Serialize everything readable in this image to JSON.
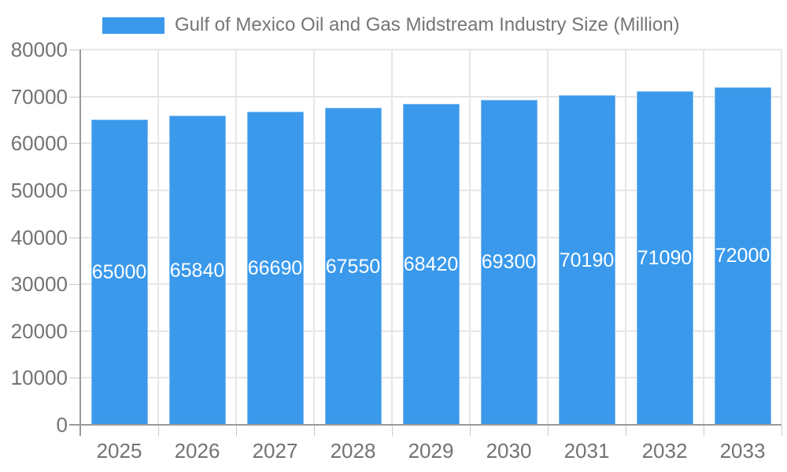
{
  "chart_data": {
    "type": "bar",
    "title": "Gulf of Mexico Oil and Gas Midstream Industry Size (Million)",
    "categories": [
      "2025",
      "2026",
      "2027",
      "2028",
      "2029",
      "2030",
      "2031",
      "2032",
      "2033"
    ],
    "values": [
      65000,
      65840,
      66690,
      67550,
      68420,
      69300,
      70190,
      71090,
      72000
    ],
    "xlabel": "",
    "ylabel": "",
    "ylim": [
      0,
      80000
    ],
    "ytick_interval": 10000,
    "yticks": [
      0,
      10000,
      20000,
      30000,
      40000,
      50000,
      60000,
      70000,
      80000
    ],
    "grid": "horizontal-and-vertical",
    "legend_position": "top",
    "bar_labels_inside": true,
    "colors": {
      "bar": "#3A99EB",
      "bar_edge": "#7FBCF2",
      "bar_label": "#FFFFFF",
      "gridline": "#E6E6E6",
      "axis_line": "#999999",
      "tick": "#C9C9C9",
      "axis_text": "#737373",
      "legend_text": "#757575",
      "background": "#FFFFFF"
    }
  }
}
